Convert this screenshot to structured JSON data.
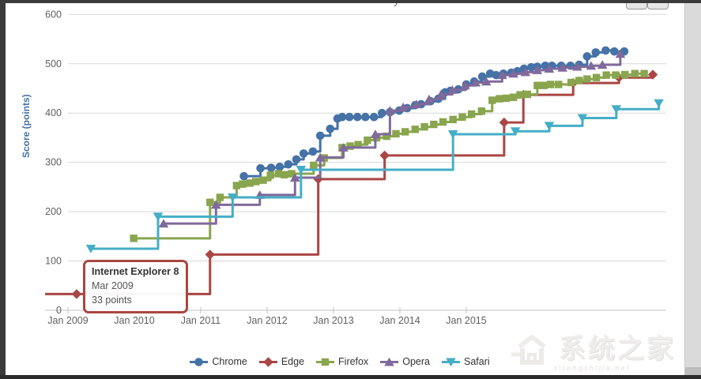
{
  "header": {
    "partial_title_glyph": "y",
    "toolbar": {
      "print_button": "",
      "export_button": ""
    }
  },
  "y_axis": {
    "title": "Score (points)",
    "title_color": "#4572A7"
  },
  "tooltip": {
    "title": "Internet Explorer 8",
    "date": "Mar 2009",
    "value": "33 points",
    "border_color": "#AA4643"
  },
  "watermark": {
    "text": "系统之家",
    "subtext": "xitongzhijia.net"
  },
  "chart_data": {
    "type": "line",
    "step": true,
    "title": "",
    "xlabel": "",
    "ylabel": "Score (points)",
    "ylim": [
      0,
      600
    ],
    "yticks": [
      0,
      100,
      200,
      300,
      400,
      500,
      600
    ],
    "grid": "horizontal",
    "legend_position": "bottom",
    "x_unit": "years since Jan 2009",
    "x_ticks": [
      {
        "t": 0,
        "label": "Jan 2009"
      },
      {
        "t": 1,
        "label": "Jan 2010"
      },
      {
        "t": 2,
        "label": "Jan 2011"
      },
      {
        "t": 3,
        "label": "Jan 2012"
      },
      {
        "t": 4,
        "label": "Jan 2013"
      },
      {
        "t": 5,
        "label": "Jan 2014"
      },
      {
        "t": 6,
        "label": "Jan 2015"
      }
    ],
    "series": [
      {
        "name": "Chrome",
        "color": "#4572A7",
        "marker": "circle",
        "points": [
          [
            2.65,
            272
          ],
          [
            2.9,
            288
          ],
          [
            3.06,
            289
          ],
          [
            3.19,
            291
          ],
          [
            3.32,
            296
          ],
          [
            3.44,
            306
          ],
          [
            3.55,
            318
          ],
          [
            3.69,
            322
          ],
          [
            3.8,
            354
          ],
          [
            3.95,
            368
          ],
          [
            4.06,
            389
          ],
          [
            4.13,
            392
          ],
          [
            4.24,
            392
          ],
          [
            4.36,
            392
          ],
          [
            4.48,
            392
          ],
          [
            4.61,
            392
          ],
          [
            4.73,
            400
          ],
          [
            4.85,
            402
          ],
          [
            4.99,
            405
          ],
          [
            5.11,
            410
          ],
          [
            5.23,
            416
          ],
          [
            5.32,
            418
          ],
          [
            5.46,
            424
          ],
          [
            5.58,
            429
          ],
          [
            5.68,
            442
          ],
          [
            5.76,
            445
          ],
          [
            5.88,
            448
          ],
          [
            6.0,
            458
          ],
          [
            6.12,
            464
          ],
          [
            6.24,
            474
          ],
          [
            6.36,
            480
          ],
          [
            6.45,
            477
          ],
          [
            6.56,
            480
          ],
          [
            6.68,
            482
          ],
          [
            6.77,
            485
          ],
          [
            6.87,
            490
          ],
          [
            6.98,
            493
          ],
          [
            7.07,
            494
          ],
          [
            7.19,
            496
          ],
          [
            7.29,
            496
          ],
          [
            7.43,
            496
          ],
          [
            7.57,
            496
          ],
          [
            7.7,
            498
          ],
          [
            7.82,
            515
          ],
          [
            7.95,
            523
          ],
          [
            8.1,
            527
          ],
          [
            8.23,
            525
          ],
          [
            8.38,
            525
          ]
        ]
      },
      {
        "name": "Edge",
        "color": "#AA4643",
        "marker": "diamond",
        "line_start_t": -0.345,
        "points": [
          [
            0.13,
            33
          ],
          [
            2.14,
            113
          ],
          [
            3.77,
            266
          ],
          [
            4.77,
            314
          ],
          [
            6.57,
            381
          ],
          [
            6.86,
            437
          ],
          [
            7.61,
            461
          ],
          [
            8.3,
            472
          ],
          [
            8.81,
            478
          ]
        ]
      },
      {
        "name": "Firefox",
        "color": "#89A54E",
        "marker": "square",
        "points": [
          [
            0.99,
            146
          ],
          [
            2.14,
            219
          ],
          [
            2.29,
            229
          ],
          [
            2.54,
            253
          ],
          [
            2.63,
            256
          ],
          [
            2.74,
            258
          ],
          [
            2.83,
            261
          ],
          [
            2.94,
            264
          ],
          [
            3.05,
            274
          ],
          [
            3.17,
            277
          ],
          [
            3.26,
            275
          ],
          [
            3.37,
            277
          ],
          [
            3.7,
            294
          ],
          [
            3.86,
            309
          ],
          [
            4.13,
            330
          ],
          [
            4.25,
            333
          ],
          [
            4.37,
            336
          ],
          [
            4.51,
            345
          ],
          [
            4.65,
            350
          ],
          [
            4.8,
            353
          ],
          [
            4.94,
            358
          ],
          [
            5.08,
            362
          ],
          [
            5.23,
            367
          ],
          [
            5.37,
            372
          ],
          [
            5.51,
            377
          ],
          [
            5.65,
            382
          ],
          [
            5.8,
            387
          ],
          [
            5.94,
            392
          ],
          [
            6.08,
            398
          ],
          [
            6.23,
            404
          ],
          [
            6.39,
            426
          ],
          [
            6.5,
            429
          ],
          [
            6.6,
            430
          ],
          [
            6.71,
            432
          ],
          [
            6.81,
            437
          ],
          [
            6.92,
            438
          ],
          [
            7.07,
            456
          ],
          [
            7.17,
            456
          ],
          [
            7.27,
            458
          ],
          [
            7.39,
            458
          ],
          [
            7.58,
            462
          ],
          [
            7.7,
            466
          ],
          [
            7.82,
            469
          ],
          [
            7.96,
            472
          ],
          [
            8.11,
            477
          ],
          [
            8.25,
            477
          ],
          [
            8.39,
            478
          ],
          [
            8.54,
            480
          ],
          [
            8.68,
            480
          ]
        ]
      },
      {
        "name": "Opera",
        "color": "#80699B",
        "marker": "triangle-up",
        "points": [
          [
            1.44,
            176
          ],
          [
            2.23,
            214
          ],
          [
            2.89,
            234
          ],
          [
            3.42,
            269
          ],
          [
            3.8,
            310
          ],
          [
            4.15,
            330
          ],
          [
            4.63,
            357
          ],
          [
            4.85,
            405
          ],
          [
            5.05,
            412
          ],
          [
            5.25,
            418
          ],
          [
            5.44,
            428
          ],
          [
            5.62,
            438
          ],
          [
            5.79,
            447
          ],
          [
            5.98,
            456
          ],
          [
            6.14,
            462
          ],
          [
            6.3,
            464
          ],
          [
            6.54,
            477
          ],
          [
            6.71,
            480
          ],
          [
            6.89,
            483
          ],
          [
            7.07,
            487
          ],
          [
            7.25,
            490
          ],
          [
            7.45,
            492
          ],
          [
            7.67,
            494
          ],
          [
            7.88,
            496
          ],
          [
            8.05,
            498
          ],
          [
            8.32,
            520
          ]
        ]
      },
      {
        "name": "Safari",
        "color": "#44AEC6",
        "marker": "triangle-down",
        "points": [
          [
            0.345,
            125
          ],
          [
            1.357,
            190
          ],
          [
            2.48,
            229
          ],
          [
            3.51,
            285
          ],
          [
            5.8,
            357
          ],
          [
            6.74,
            363
          ],
          [
            7.25,
            374
          ],
          [
            7.75,
            390
          ],
          [
            8.26,
            408
          ],
          [
            8.9,
            420
          ]
        ]
      }
    ]
  }
}
